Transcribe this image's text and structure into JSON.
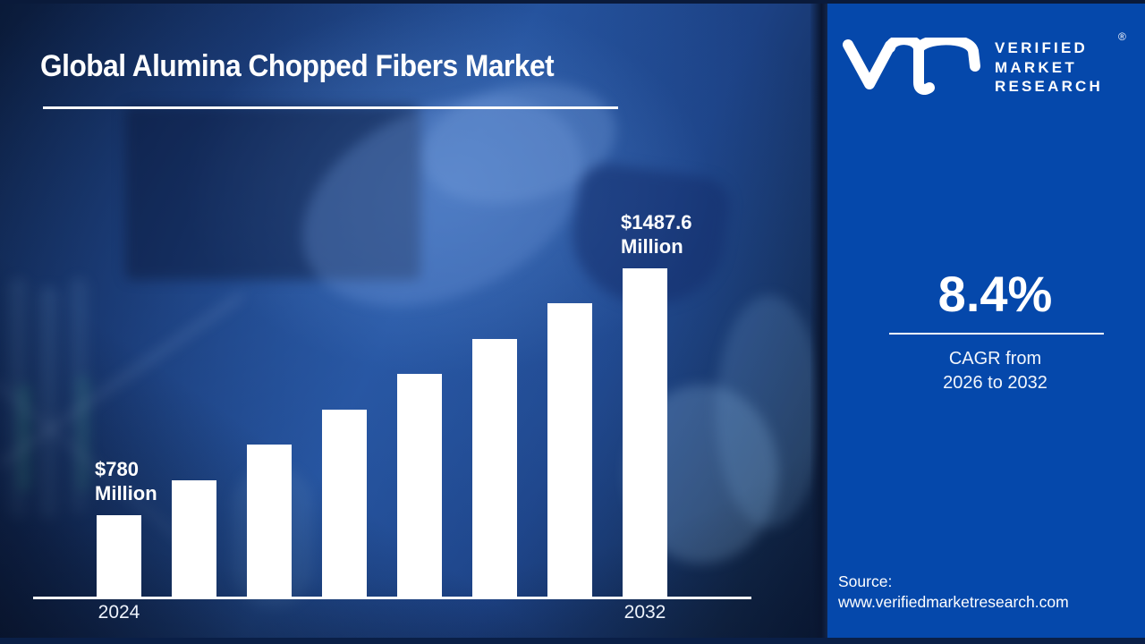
{
  "title": "Global Alumina Chopped Fibers Market",
  "brand": {
    "name_lines": [
      "VERIFIED",
      "MARKET",
      "RESEARCH"
    ],
    "registered_mark": "®"
  },
  "stats": {
    "cagr_value": "8.4%",
    "cagr_caption_line1": "CAGR from",
    "cagr_caption_line2": "2026 to 2032"
  },
  "source": {
    "label": "Source:",
    "url": "www.verifiedmarketresearch.com"
  },
  "colors": {
    "panel_blue": "#0548ab",
    "bar_white": "#ffffff",
    "background_navy": "#0b1b38",
    "axis_white": "#ffffff"
  },
  "chart_data": {
    "type": "bar",
    "title": "Global Alumina Chopped Fibers Market",
    "unit": "USD Million",
    "categories": [
      "2024",
      "",
      "",
      "",
      "",
      "",
      "",
      "2032"
    ],
    "values": [
      780,
      881.1,
      982.2,
      1083.3,
      1184.4,
      1285.4,
      1386.5,
      1487.6
    ],
    "labeled_points": [
      {
        "index": 0,
        "label_line1": "$780",
        "label_line2": "Million"
      },
      {
        "index": 7,
        "label_line1": "$1487.6",
        "label_line2": "Million"
      }
    ],
    "bar_color": "#ffffff",
    "axis_line_color": "#ffffff",
    "grid": false,
    "legend": false,
    "xlabel": "",
    "ylabel": ""
  }
}
